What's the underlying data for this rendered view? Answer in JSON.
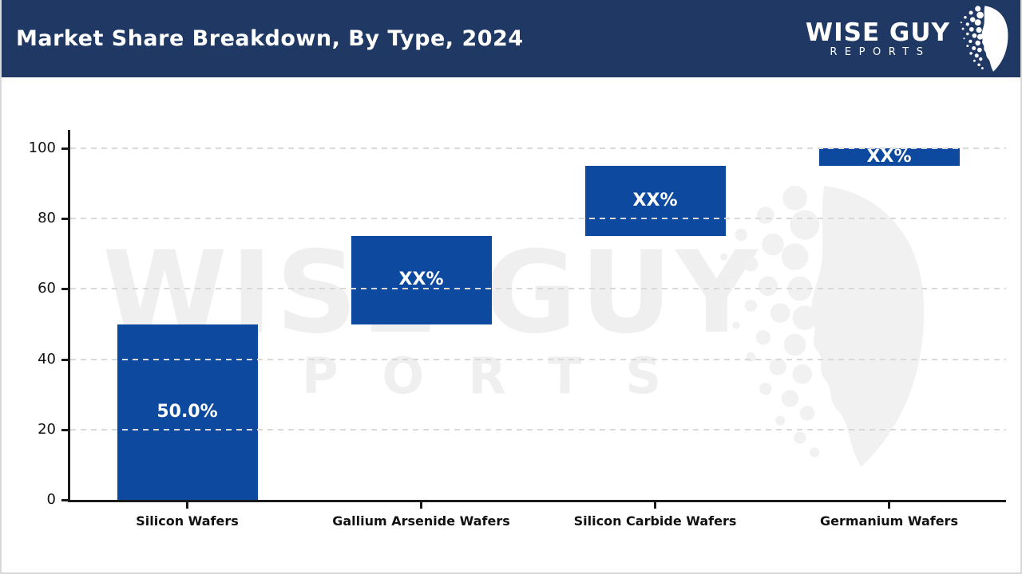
{
  "header": {
    "title": "Market Share Breakdown, By Type, 2024",
    "brand": {
      "line1": "WISE GUY",
      "line2": "REPORTS"
    }
  },
  "watermark": {
    "line1": "WISE GUY",
    "line2": "REPORTS"
  },
  "colors": {
    "header_bg": "#1f3864",
    "bar": "#0d4a9f",
    "bar_label": "#ffffff",
    "gridline": "#d9d9d9",
    "axis": "#1a1a1a",
    "watermark": "#efefef"
  },
  "chart_data": {
    "type": "bar",
    "subtype": "waterfall",
    "title": "Market Share Breakdown, By Type, 2024",
    "xlabel": "",
    "ylabel": "",
    "categories": [
      "Silicon Wafers",
      "Gallium Arsenide Wafers",
      "Silicon Carbide Wafers",
      "Germanium Wafers"
    ],
    "bars": [
      {
        "start": 0,
        "end": 50,
        "label": "50.0%"
      },
      {
        "start": 50,
        "end": 75,
        "label": "XX%"
      },
      {
        "start": 75,
        "end": 95,
        "label": "XX%"
      },
      {
        "start": 95,
        "end": 100,
        "label": "XX%"
      }
    ],
    "bar_color": "#0d4a9f",
    "ylim": [
      0,
      105
    ],
    "yticks": [
      0,
      20,
      40,
      60,
      80,
      100
    ],
    "grid": "dashed-horizontal",
    "legend": "none"
  }
}
